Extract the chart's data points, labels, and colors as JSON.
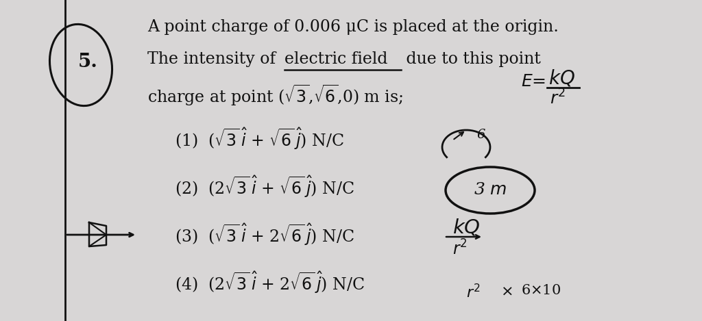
{
  "background_color": "#d8d6d6",
  "font_color": "#111111",
  "question_number": "5.",
  "line1": "A point charge of 0.006 μC is placed at the origin.",
  "line2a": "The intensity of ",
  "line2b": "electric field",
  "line2c": " due to this point",
  "line3": "charge at point (√3,√6,0) m is;",
  "opt1": "(1)  (√3̂i + √6̂j) N/C",
  "opt2": "(2)  (2√3̂i + √6̂j) N/C",
  "opt3": "(3)  (√3̂i + 2√6̂j) N/C",
  "opt4": "(4)  (2√3̂i + 2√6̂j) N/C",
  "annot_E": "E=",
  "annot_kQ": "kQ",
  "annot_r2": "r²",
  "annot_circle_text": "3 m",
  "figsize": [
    10.24,
    4.69
  ],
  "dpi": 100
}
